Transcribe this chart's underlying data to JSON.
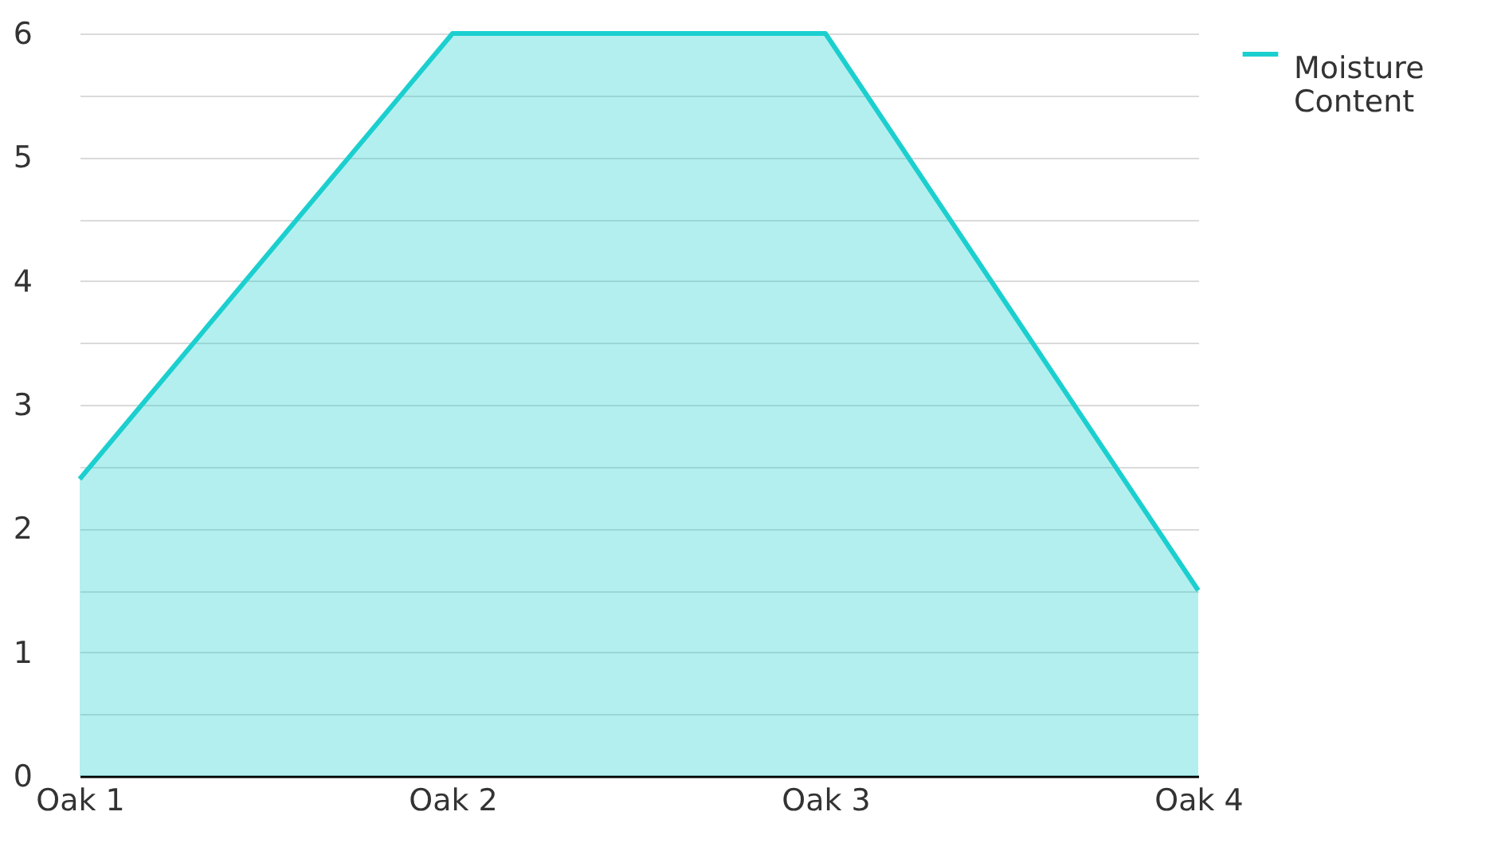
{
  "chart_data": {
    "type": "area",
    "categories": [
      "Oak 1",
      "Oak 2",
      "Oak 3",
      "Oak 4"
    ],
    "series": [
      {
        "name": "Moisture Content",
        "color": "#1ccfcf",
        "values": [
          2.4,
          6,
          6,
          1.5
        ]
      }
    ],
    "ylim": [
      0,
      6
    ],
    "yticks": [
      0,
      {
        "value": 0.5,
        "label": null
      },
      1,
      {
        "value": 1.5,
        "label": null
      },
      2,
      {
        "value": 2.5,
        "label": null
      },
      3,
      {
        "value": 3.5,
        "label": null
      },
      4,
      {
        "value": 4.5,
        "label": null
      },
      5,
      {
        "value": 5.5,
        "label": null
      },
      6
    ],
    "grid": "y",
    "legend": "top right"
  }
}
